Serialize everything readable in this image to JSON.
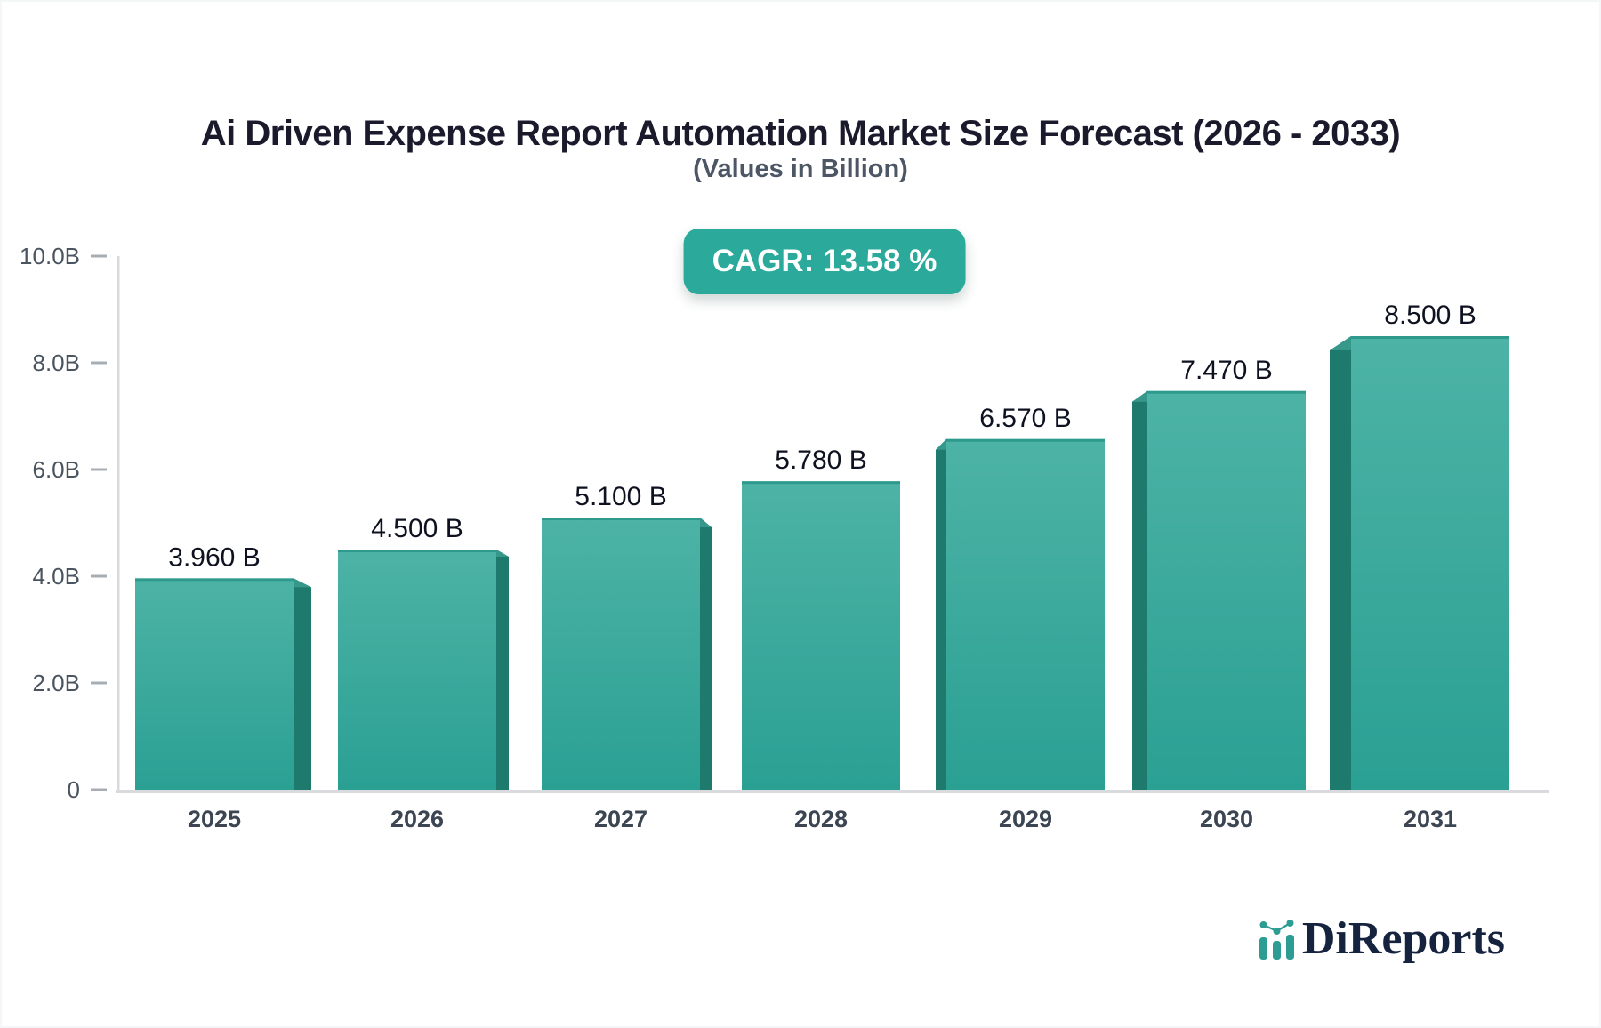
{
  "title": "Ai Driven Expense Report Automation Market Size Forecast (2026 - 2033)",
  "subtitle": "(Values in Billion)",
  "badge": {
    "label": "CAGR: 13.58 %"
  },
  "logo": {
    "text": "DiReports"
  },
  "chart_data": {
    "type": "bar",
    "categories": [
      "2025",
      "2026",
      "2027",
      "2028",
      "2029",
      "2030",
      "2031"
    ],
    "values": [
      3.96,
      4.5,
      5.1,
      5.78,
      6.57,
      7.47,
      8.5
    ],
    "bar_labels": [
      "3.960 B",
      "4.500 B",
      "5.100 B",
      "5.780 B",
      "6.570 B",
      "7.470 B",
      "8.500 B"
    ],
    "y_ticks": [
      {
        "value": 10,
        "label": "10.0B"
      },
      {
        "value": 8,
        "label": "8.0B"
      },
      {
        "value": 6,
        "label": "6.0B"
      },
      {
        "value": 4,
        "label": "4.0B"
      },
      {
        "value": 2,
        "label": "2.0B"
      },
      {
        "value": 0,
        "label": "0"
      }
    ],
    "ylim": [
      0,
      10
    ],
    "unit": "Billion",
    "grid": false,
    "legend": false,
    "cagr_percent": 13.58,
    "colors": {
      "bar_face_top": "#4db3a6",
      "bar_face_bottom": "#2aa093",
      "bar_side": "#1f7a6e",
      "bar_chamfer": "#36988b",
      "bar_top_edge": "#2e9a8d",
      "badge_bg": "#2ba99b",
      "axis_line": "#d8dade",
      "tick_dash": "#a7adb5",
      "tick_label": "#4a545f",
      "year_label": "#3c4653",
      "value_label": "#0e1220",
      "logo_navy": "#15233e",
      "logo_teal": "#2d9c93"
    }
  }
}
